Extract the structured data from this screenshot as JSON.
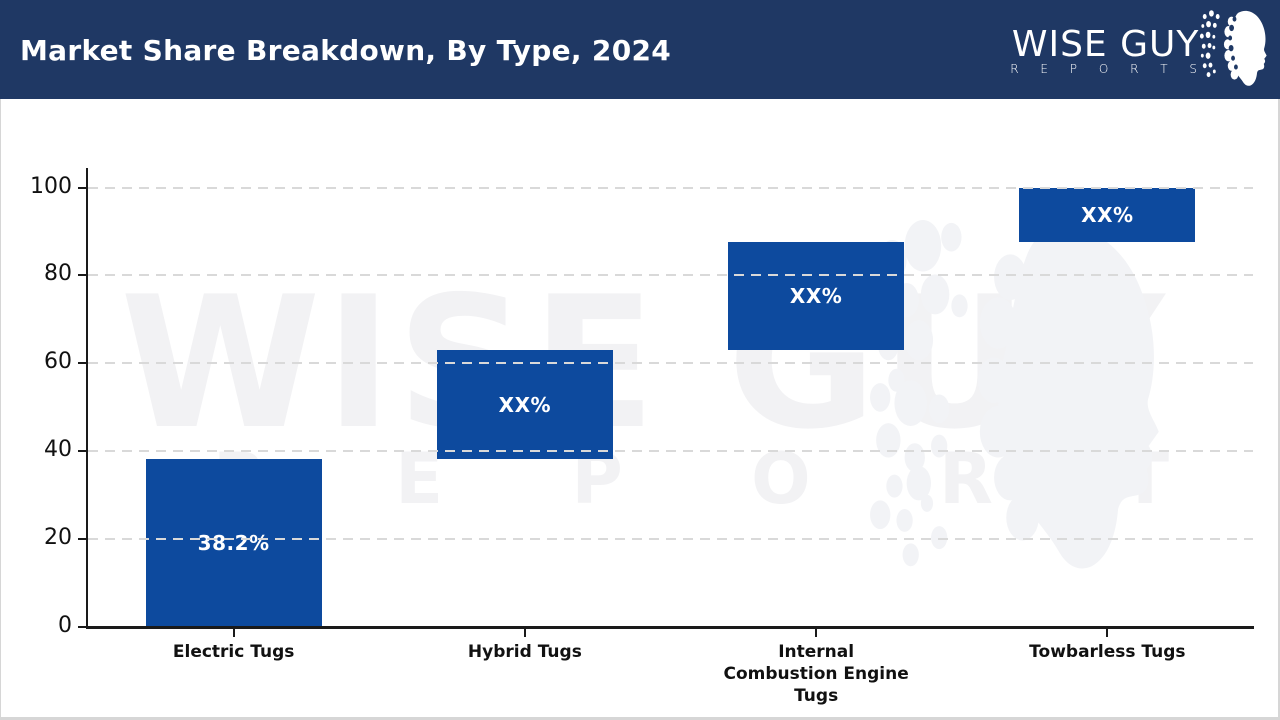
{
  "header": {
    "title": "Market Share Breakdown, By Type, 2024",
    "brand": {
      "line1": "WISE GUY",
      "line2": "R E P O R T S"
    },
    "bg_color": "#1f3864"
  },
  "watermark": {
    "line1": "WISE GUY",
    "line2": "R E P O R T S"
  },
  "chart_data": {
    "type": "bar",
    "subtype": "waterfall",
    "title": "Market Share Breakdown, By Type, 2024",
    "categories": [
      "Electric Tugs",
      "Hybrid Tugs",
      "Internal Combustion Engine Tugs",
      "Towbarless Tugs"
    ],
    "category_display": [
      "Electric Tugs",
      "Hybrid Tugs",
      "Internal\nCombustion Engine\nTugs",
      "Towbarless Tugs"
    ],
    "segments": [
      {
        "category": "Electric Tugs",
        "start": 0,
        "end": 38.2,
        "label": "38.2%"
      },
      {
        "category": "Hybrid Tugs",
        "start": 38.2,
        "end": 63,
        "label": "XX%"
      },
      {
        "category": "Internal Combustion Engine Tugs",
        "start": 63,
        "end": 87.5,
        "label": "XX%"
      },
      {
        "category": "Towbarless Tugs",
        "start": 87.5,
        "end": 100,
        "label": "XX%"
      }
    ],
    "xlabel": "",
    "ylabel": "",
    "ylim": [
      0,
      100
    ],
    "yticks": [
      0,
      20,
      40,
      60,
      80,
      100
    ],
    "grid": "dashed horizontal, drawn over bars",
    "legend": "none",
    "bar_color": "#0d4a9e",
    "value_label_color": "#ffffff",
    "axis_color": "#1a1a1a",
    "grid_color": "#d9d9d9"
  }
}
